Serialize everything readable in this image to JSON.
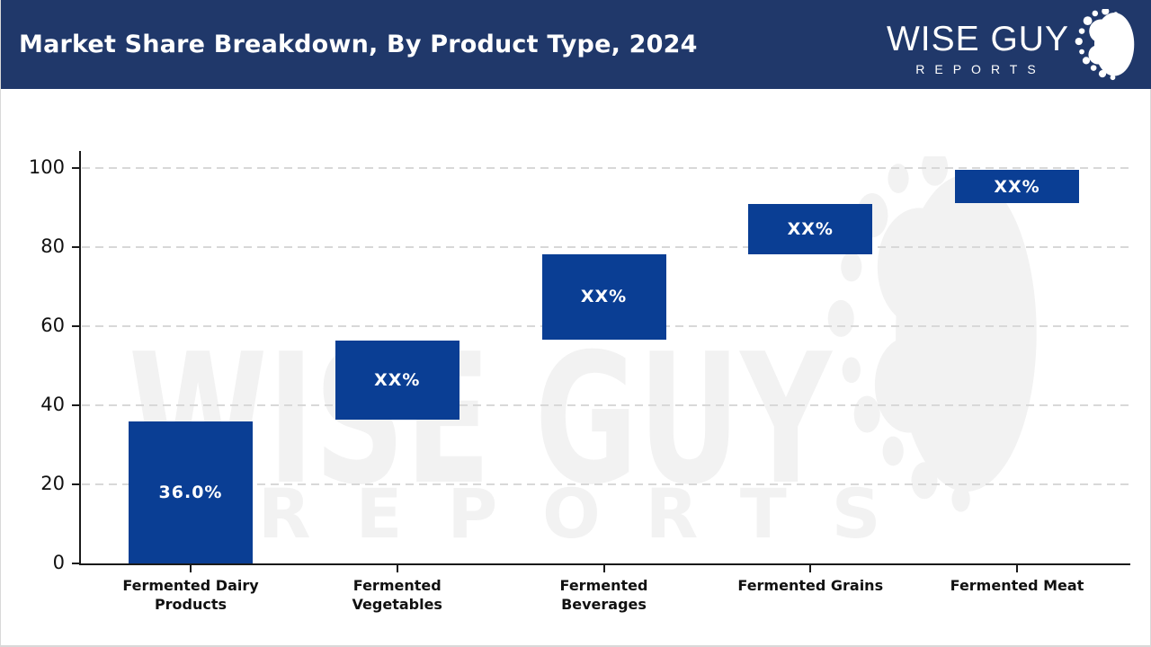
{
  "page": {
    "background": "#ffffff",
    "border_color": "#d9d9d9"
  },
  "header": {
    "background": "#20386a",
    "title": "Market Share Breakdown, By Product Type, 2024",
    "logo": {
      "name": "WISE GUY",
      "tagline": "REPORTS"
    }
  },
  "watermark": {
    "name": "WISE GUY",
    "tagline": "REPORTS"
  },
  "chart_data": {
    "type": "bar",
    "variant": "waterfall",
    "title": "Market Share Breakdown, By Product Type, 2024",
    "xlabel": "",
    "ylabel": "",
    "ylim": [
      0,
      105
    ],
    "yticks": [
      0,
      20,
      40,
      60,
      80,
      100
    ],
    "grid": "horizontal dashed",
    "legend": "none",
    "bar_color": "#0a3e94",
    "bar_label_color": "#ffffff",
    "axis_color": "#1a1a1a",
    "grid_color": "#d8d8d8",
    "categories": [
      "Fermented Dairy Products",
      "Fermented Vegetables",
      "Fermented Beverages",
      "Fermented Grains",
      "Fermented Meat"
    ],
    "category_lines": [
      [
        "Fermented Dairy",
        "Products"
      ],
      [
        "Fermented",
        "Vegetables"
      ],
      [
        "Fermented",
        "Beverages"
      ],
      [
        "Fermented Grains"
      ],
      [
        "Fermented Meat"
      ]
    ],
    "segments": [
      {
        "category": "Fermented Dairy Products",
        "start": 0,
        "end": 36,
        "label": "36.0%"
      },
      {
        "category": "Fermented Vegetables",
        "start": 36.4,
        "end": 56.4,
        "label": "XX%"
      },
      {
        "category": "Fermented Beverages",
        "start": 56.6,
        "end": 78.2,
        "label": "XX%"
      },
      {
        "category": "Fermented Grains",
        "start": 78.2,
        "end": 90.9,
        "label": "XX%"
      },
      {
        "category": "Fermented Meat",
        "start": 91.1,
        "end": 99.5,
        "label": "XX%"
      }
    ]
  }
}
